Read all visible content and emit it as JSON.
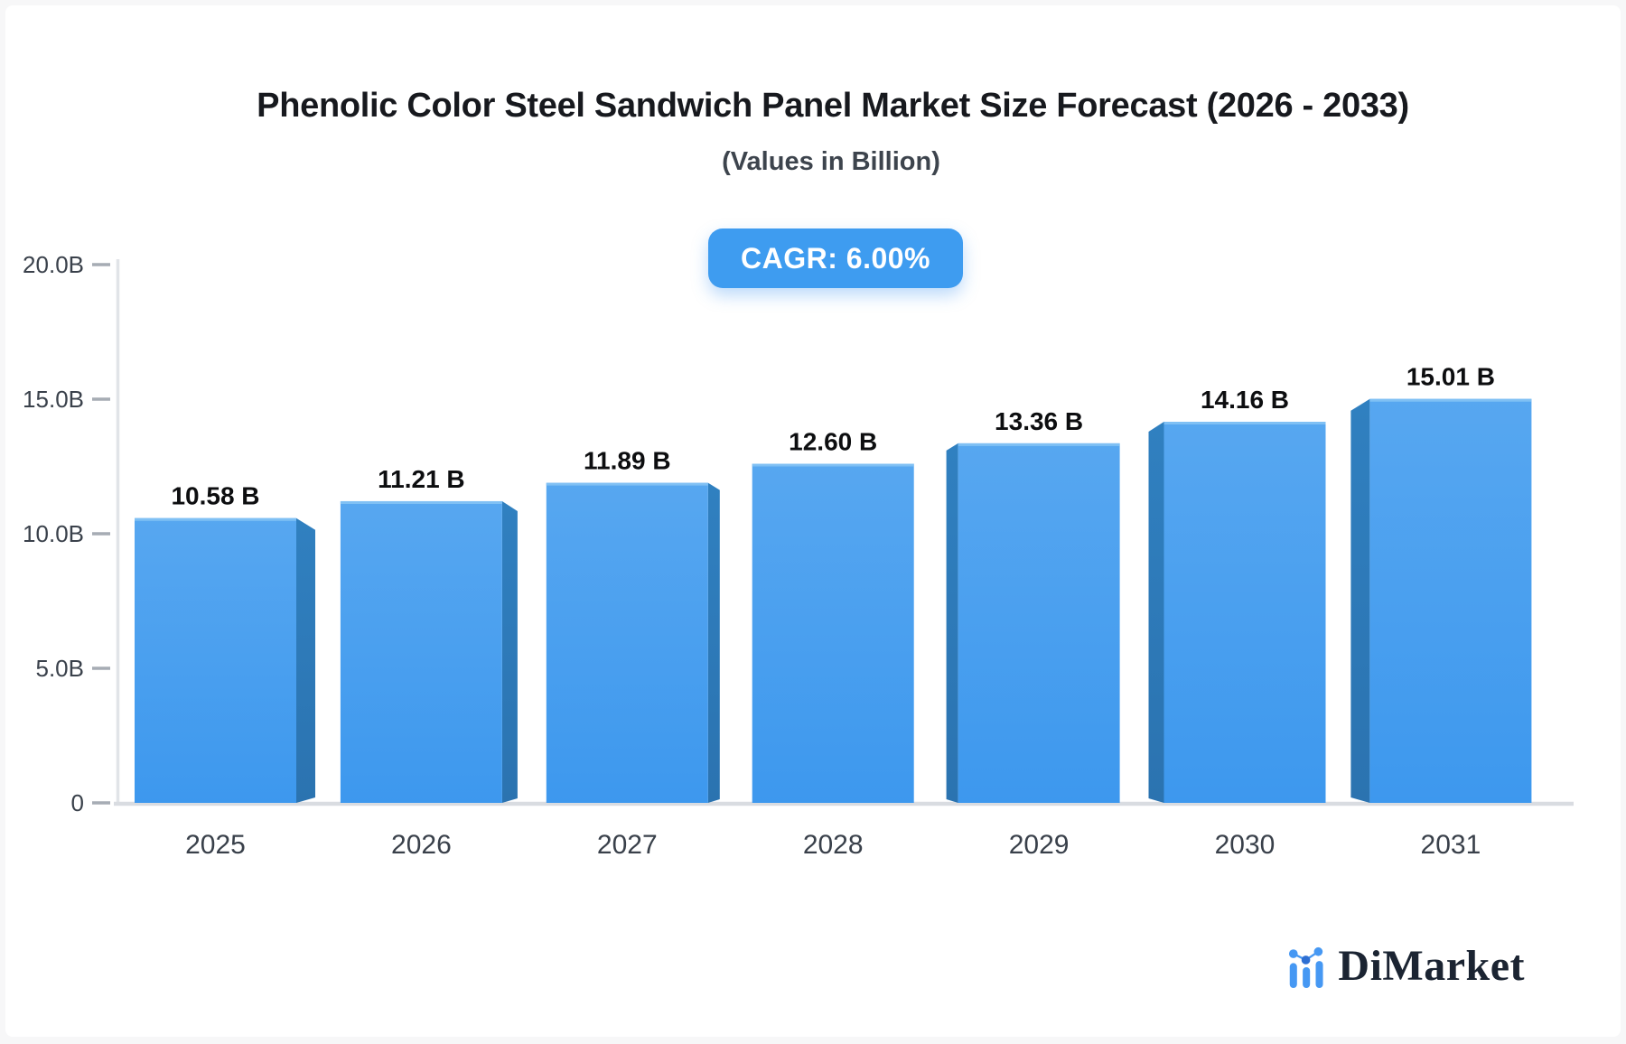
{
  "page": {
    "background": "#f7f7f8",
    "card_background": "#ffffff"
  },
  "header": {
    "title": "Phenolic Color Steel Sandwich Panel Market Size Forecast (2026 - 2033)",
    "subtitle": "(Values in Billion)"
  },
  "badge": {
    "label": "CAGR: 6.00%",
    "background": "#3e9cf0",
    "text_color": "#ffffff"
  },
  "chart_data": {
    "type": "bar",
    "title": "Phenolic Color Steel Sandwich Panel Market Size Forecast (2026 - 2033)",
    "subtitle": "(Values in Billion)",
    "unit": "Billion",
    "cagr_percent": 6.0,
    "categories": [
      "2025",
      "2026",
      "2027",
      "2028",
      "2029",
      "2030",
      "2031"
    ],
    "values": [
      10.58,
      11.21,
      11.89,
      12.6,
      13.36,
      14.16,
      15.01
    ],
    "value_labels": [
      "10.58 B",
      "11.21 B",
      "11.89 B",
      "12.60 B",
      "13.36 B",
      "14.16 B",
      "15.01 B"
    ],
    "ylim": [
      0,
      20
    ],
    "y_ticks": [
      {
        "value": 20,
        "label": "20.0B"
      },
      {
        "value": 15,
        "label": "15.0B"
      },
      {
        "value": 10,
        "label": "10.0B"
      },
      {
        "value": 5,
        "label": "5.0B"
      },
      {
        "value": 0,
        "label": "0"
      }
    ],
    "grid": false,
    "legend": false,
    "style_3d": "central-perspective",
    "colors": {
      "bar_top": "#57a7f0",
      "bar_bottom": "#3d98ee",
      "bar_highlight": "#7fc0f4",
      "bar_side": "#2d77b6",
      "axis_line": "#e1e4e8",
      "baseline": "#d9dce1",
      "tick_dash": "#a6acb4",
      "tick_text": "#3a414b",
      "category_text": "#39404a",
      "value_text": "#0d0e10"
    }
  },
  "logo": {
    "text": "DiMarket",
    "icon": "bar-chart-logo-icon",
    "icon_color": "#4698f3",
    "icon_accent": "#2e6fd3",
    "text_color": "#1b2432"
  }
}
